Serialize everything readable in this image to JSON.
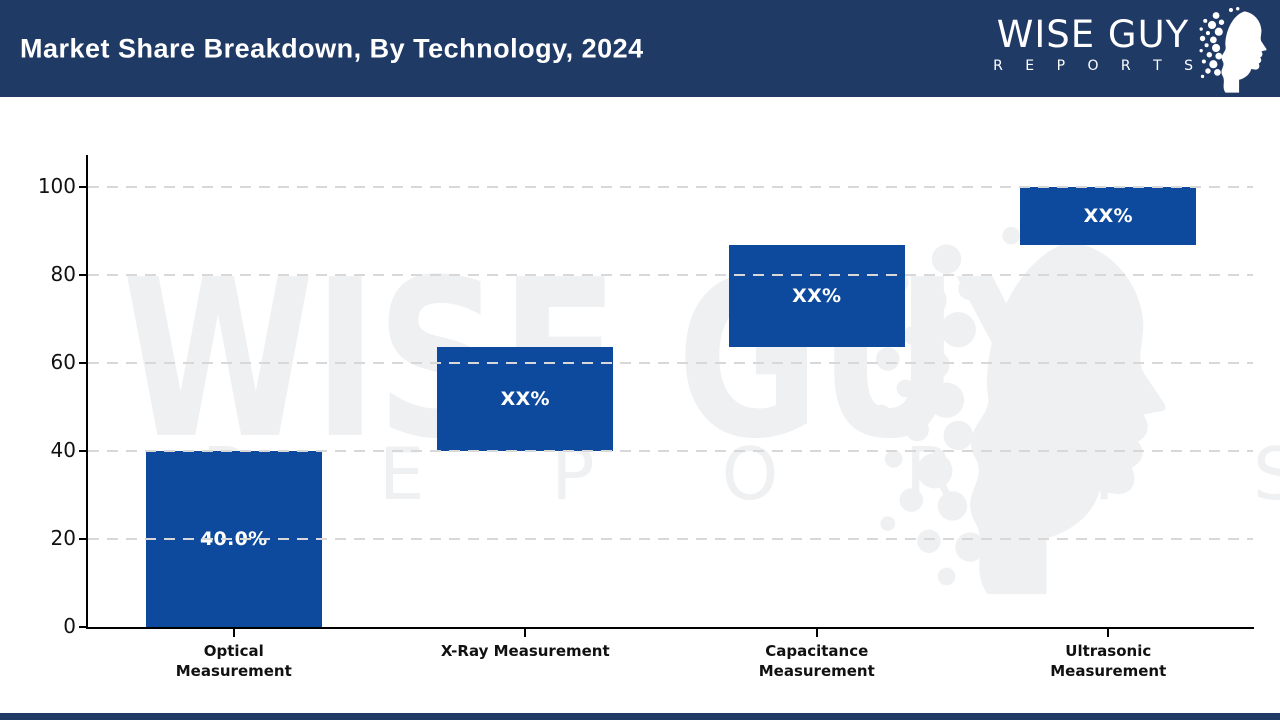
{
  "header": {
    "title": "Market Share Breakdown, By Technology, 2024",
    "bg_color": "#203a66",
    "logo": {
      "line1": "WISE GUY",
      "line2": "R E P O R T S"
    }
  },
  "watermark": {
    "line1": "WISE GUY.",
    "line2": "R E P O R T S",
    "color": "#eff0f2"
  },
  "footer": {
    "bg_color": "#203a66"
  },
  "chart_data": {
    "type": "bar",
    "subtype": "waterfall",
    "title": "Market Share Breakdown, By Technology, 2024",
    "xlabel": "",
    "ylabel": "",
    "categories": [
      "Optical Measurement",
      "X-Ray Measurement",
      "Capacitance Measurement",
      "Ultrasonic Measurement"
    ],
    "category_lines": [
      [
        "Optical",
        "Measurement"
      ],
      [
        "X-Ray Measurement"
      ],
      [
        "Capacitance",
        "Measurement"
      ],
      [
        "Ultrasonic",
        "Measurement"
      ]
    ],
    "segments": [
      {
        "start": 0,
        "end": 40,
        "label": "40.0%"
      },
      {
        "start": 40,
        "end": 63.6,
        "label": "XX%"
      },
      {
        "start": 63.6,
        "end": 86.8,
        "label": "XX%"
      },
      {
        "start": 86.8,
        "end": 100,
        "label": "XX%"
      }
    ],
    "yticks": [
      0,
      20,
      40,
      60,
      80,
      100
    ],
    "ylim": [
      0,
      107
    ],
    "grid": true,
    "legend": false,
    "bar_color": "#0d4a9d",
    "bar_label_color": "#ffffff",
    "grid_color": "#d8d8d8",
    "axis_color": "#000000"
  }
}
